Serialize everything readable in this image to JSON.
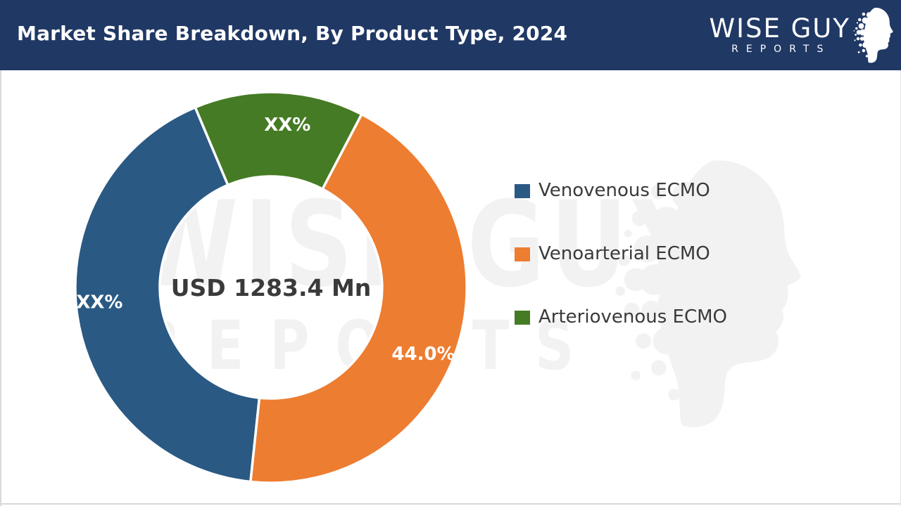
{
  "header": {
    "title": "Market Share Breakdown, By Product Type, 2024",
    "bg_color": "#203864",
    "logo": {
      "brand_top": "WISE GUY",
      "brand_bottom": "REPORTS",
      "face_icon": "face-profile-dots-icon"
    }
  },
  "chart_data": {
    "type": "pie",
    "subtype": "donut",
    "title": "Market Share Breakdown, By Product Type, 2024",
    "center_label": "USD 1283.4 Mn",
    "unit": "%",
    "legend_position": "right",
    "start_angle_deg_clockwise_from_top": 186,
    "draw_order": [
      0,
      2,
      1
    ],
    "segments": [
      {
        "name": "Venovenous ECMO",
        "color": "#2a5983",
        "displayed_label": "XX%",
        "value_pct": 42.0,
        "value_masked": true
      },
      {
        "name": "Venoarterial ECMO",
        "color": "#ed7d31",
        "displayed_label": "44.0%",
        "value_pct": 44.0,
        "value_masked": false
      },
      {
        "name": "Arteriovenous ECMO",
        "color": "#457b24",
        "displayed_label": "XX%",
        "value_pct": 14.0,
        "value_masked": true
      }
    ]
  },
  "watermark": {
    "line1": "WISE GUY",
    "line2": "REPORTS"
  },
  "colors": {
    "header_bg": "#203864",
    "blue": "#2a5983",
    "orange": "#ed7d31",
    "green": "#457b24",
    "legend_text": "#3a3a3a",
    "center_text": "#3a3a3a",
    "watermark": "#f2f2f2",
    "border": "#d9d9d9",
    "slice_gap": "#ffffff"
  }
}
